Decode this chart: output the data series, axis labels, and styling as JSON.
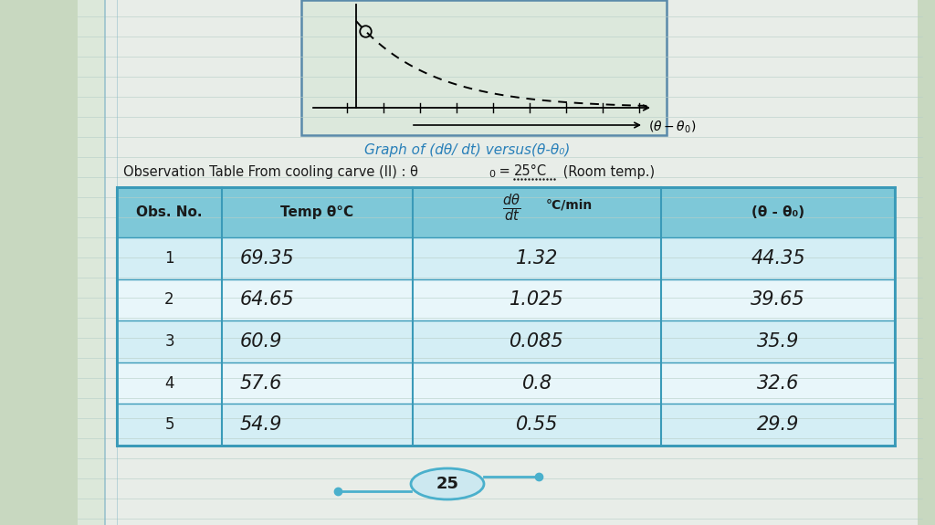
{
  "title_graph": "Graph of (dθ/ dt) versus(θ-θ₀)",
  "col_headers": [
    "Obs. No.",
    "Temp θ°C",
    "dθ/dt °C/min",
    "(θ - θ₀)"
  ],
  "rows": [
    [
      "1",
      "69.35",
      "1.32",
      "44.35"
    ],
    [
      "2",
      "64.65",
      "1.025",
      "39.65"
    ],
    [
      "3",
      "60.9",
      "0.085",
      "35.9"
    ],
    [
      "4",
      "57.6",
      "0.8",
      "32.6"
    ],
    [
      "5",
      "54.9",
      "0.55",
      "29.9"
    ]
  ],
  "header_bg": "#7ec8d8",
  "row_bg_light": "#d4eef5",
  "row_bg_white": "#e8f6fa",
  "border_color": "#3a9ab8",
  "title_color": "#2980b9",
  "text_color": "#1a1a1a",
  "page_bg": "#c8d8c0",
  "notebook_bg": "#d8e8d0",
  "content_bg": "#e8f0e8",
  "graph_caption_color": "#2980b9",
  "page_number_circle_color": "#5abcd8",
  "line_color": "#4ab0cc"
}
